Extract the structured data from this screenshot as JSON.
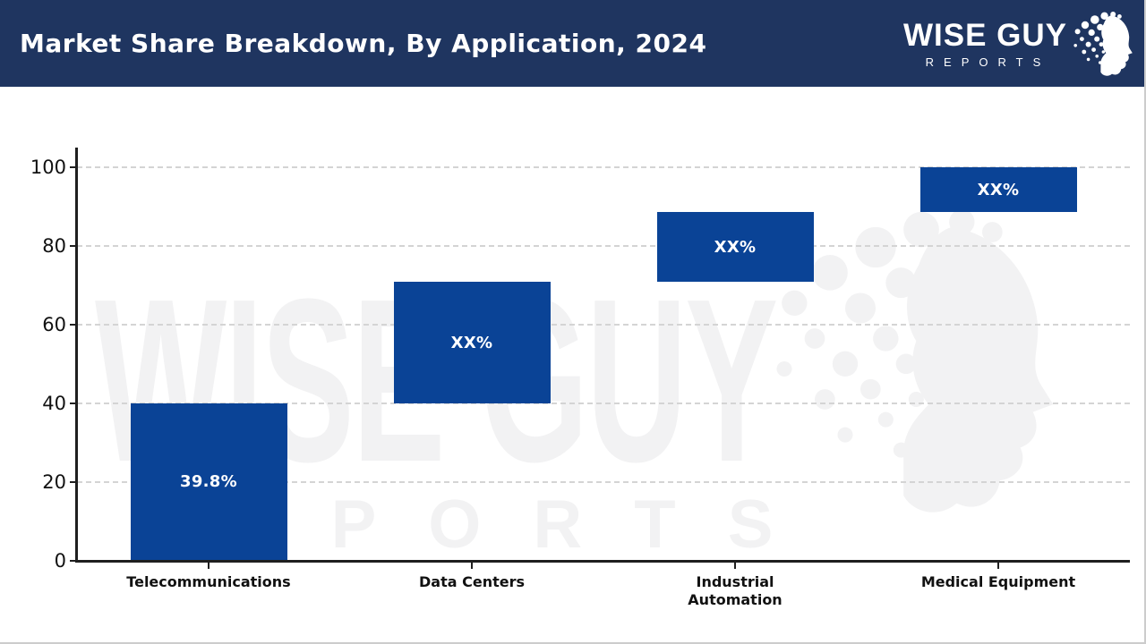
{
  "header": {
    "title": "Market Share Breakdown, By Application, 2024",
    "logo": {
      "line1": "WISE GUY",
      "line2": "REPORTS"
    }
  },
  "watermark": {
    "line1": "WISE GUY",
    "line2": "REPORTS"
  },
  "chart_data": {
    "type": "bar",
    "subtype": "waterfall",
    "title": "Market Share Breakdown, By Application, 2024",
    "categories": [
      "Telecommunications",
      "Data Centers",
      "Industrial\nAutomation",
      "Medical Equipment"
    ],
    "segments": [
      {
        "category": "Telecommunications",
        "start": 0,
        "end": 39.8,
        "label": "39.8%"
      },
      {
        "category": "Data Centers",
        "start": 39.8,
        "end": 70.7,
        "label": "XX%"
      },
      {
        "category": "Industrial Automation",
        "start": 70.7,
        "end": 88.5,
        "label": "XX%"
      },
      {
        "category": "Medical Equipment",
        "start": 88.5,
        "end": 99.9,
        "label": "XX%"
      }
    ],
    "yticks": [
      0,
      20,
      40,
      60,
      80,
      100
    ],
    "ylim": [
      0,
      104
    ],
    "xlabel": "",
    "ylabel": "",
    "legend": "none",
    "grid": "horizontal-dashed",
    "bar_color": "#0a4396"
  },
  "colors": {
    "header_bg": "#1f3560",
    "bar": "#0a4396",
    "grid": "#d4d4d4",
    "axis": "#1f1f1f",
    "watermark": "#f2f2f3",
    "edge": "#cccccc"
  }
}
